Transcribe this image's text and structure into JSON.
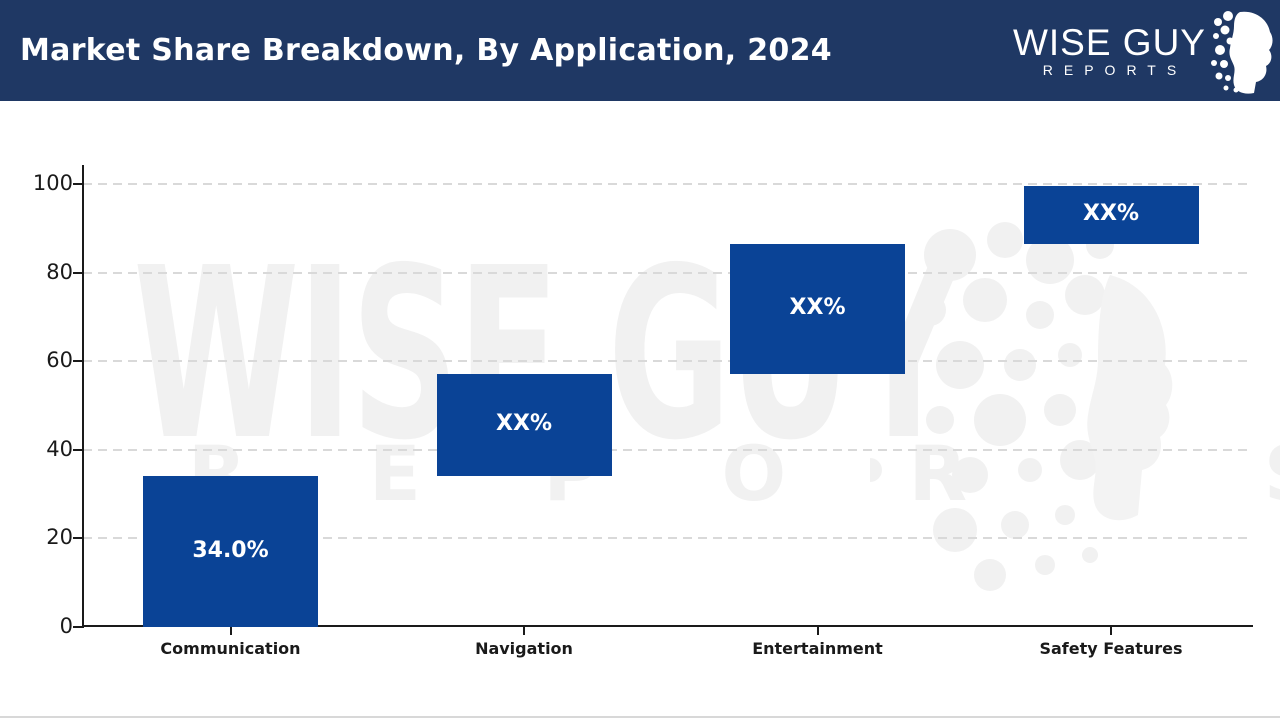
{
  "header": {
    "title": "Market Share Breakdown, By Application, 2024",
    "bg_color": "#1f3864",
    "logo": {
      "line1": "WISE GUY",
      "line2": "REPORTS"
    }
  },
  "watermark": {
    "line1": "WISE GUY",
    "line2": "R E P O R T S"
  },
  "chart_data": {
    "type": "bar",
    "variant": "waterfall",
    "title": "",
    "xlabel": "",
    "ylabel": "",
    "categories": [
      "Communication",
      "Navigation",
      "Entertainment",
      "Safety Features"
    ],
    "segments": [
      {
        "category": "Communication",
        "start": 0,
        "end": 34,
        "value": 34,
        "label": "34.0%"
      },
      {
        "category": "Navigation",
        "start": 34,
        "end": 57,
        "value": 23,
        "label": "XX%"
      },
      {
        "category": "Entertainment",
        "start": 57,
        "end": 86.5,
        "value": 29.5,
        "label": "XX%"
      },
      {
        "category": "Safety Features",
        "start": 86.5,
        "end": 99.5,
        "value": 13,
        "label": "XX%"
      }
    ],
    "y_ticks": [
      0,
      20,
      40,
      60,
      80,
      100
    ],
    "ylim": [
      0,
      103
    ],
    "grid": "horizontal dashed",
    "legend": "none",
    "bar_color": "#0a4396",
    "bar_label_color": "#ffffff",
    "axis_color": "#1a1a1a",
    "gridline_color": "#d9d9d9"
  }
}
